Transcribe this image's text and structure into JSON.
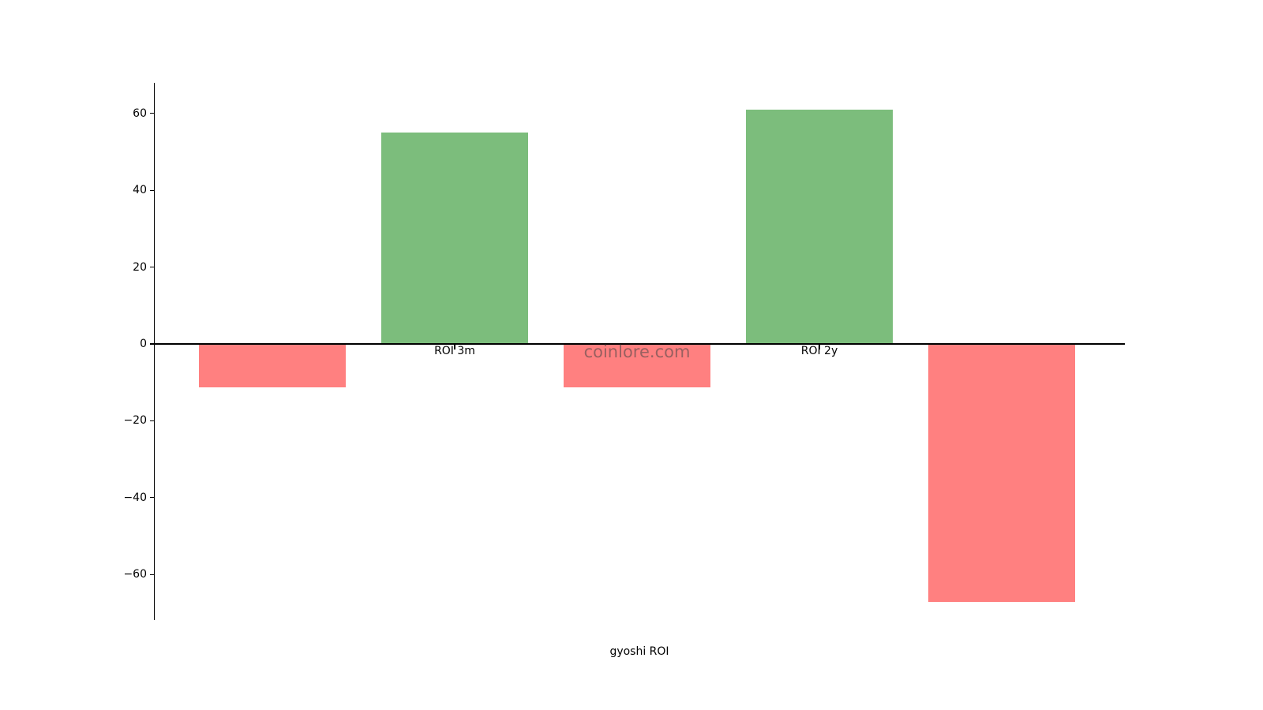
{
  "chart_data": {
    "type": "bar",
    "title": "",
    "xlabel": "gyoshi ROI",
    "ylabel": "",
    "watermark": "coinlore.com",
    "categories": [
      "",
      "ROI 3m",
      "",
      "ROI 2y",
      ""
    ],
    "values": [
      -11,
      55,
      -11,
      61,
      -67
    ],
    "bar_colors": [
      "#FF8080",
      "#7CBD7C",
      "#FF8080",
      "#7CBD7C",
      "#FF8080"
    ],
    "positive_color": "#7CBD7C",
    "negative_color": "#FF8080",
    "yticks": [
      60,
      40,
      20,
      0,
      -20,
      -40,
      -60
    ],
    "ylim": [
      -72,
      68
    ],
    "grid": false,
    "legend_position": "none",
    "background_color": "#ffffff",
    "axis_color": "#000000",
    "tick_label_color": "#000000",
    "watermark_color": "rgba(70,70,70,0.55)"
  }
}
